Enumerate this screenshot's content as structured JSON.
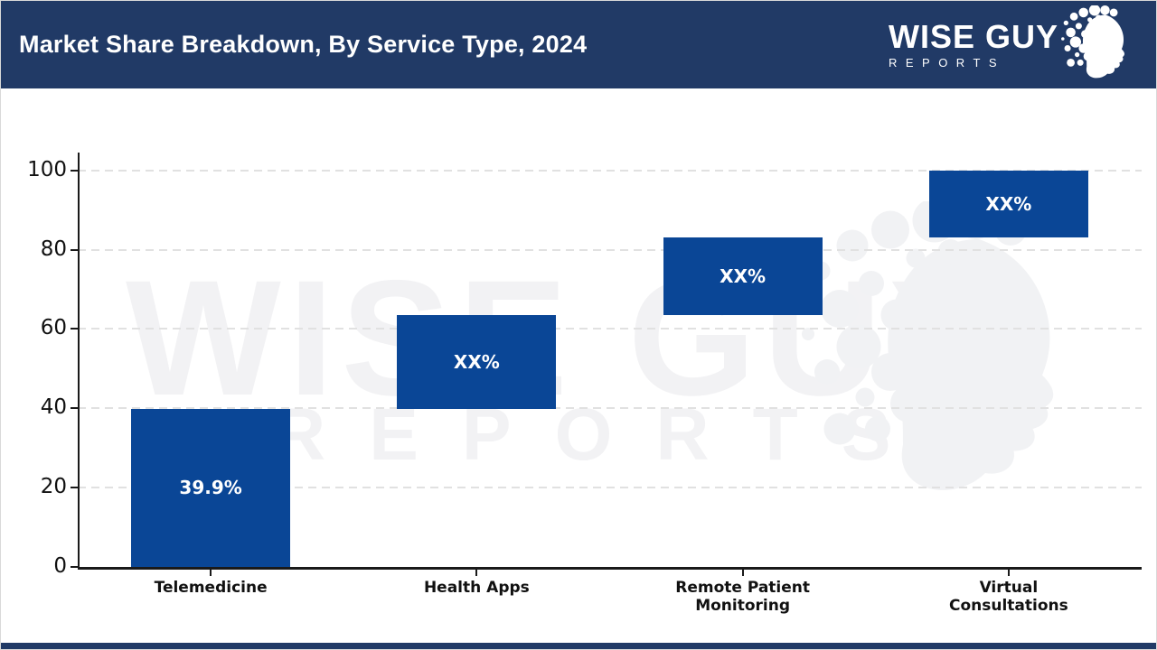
{
  "header": {
    "title": "Market Share Breakdown, By Service Type, 2024",
    "logo": {
      "line1": "WISE GUY",
      "line2": "REPORTS"
    }
  },
  "watermark": {
    "line1": "WISE GUY",
    "line2": "REPORTS"
  },
  "colors": {
    "header_bg": "#213a66",
    "bar": "#0a4696",
    "bar_label": "#ffffff",
    "grid": "#e1e1e1",
    "axis": "#1a1a1a",
    "watermark": "#f2f2f4"
  },
  "chart_data": {
    "type": "bar",
    "subtype": "waterfall",
    "title": "Market Share Breakdown, By Service Type, 2024",
    "categories": [
      "Telemedicine",
      "Health Apps",
      "Remote Patient Monitoring",
      "Virtual Consultations"
    ],
    "segments": [
      {
        "category": "Telemedicine",
        "start": 0,
        "end": 39.9,
        "label": "39.9%"
      },
      {
        "category": "Health Apps",
        "start": 39.9,
        "end": 63.4,
        "label": "XX%"
      },
      {
        "category": "Remote Patient Monitoring",
        "start": 63.4,
        "end": 83.1,
        "label": "XX%"
      },
      {
        "category": "Virtual Consultations",
        "start": 83.1,
        "end": 100,
        "label": "XX%"
      }
    ],
    "yticks": [
      0,
      20,
      40,
      60,
      80,
      100
    ],
    "ylim": [
      0,
      105
    ],
    "xlabel": "",
    "ylabel": "",
    "grid": "horizontal-dashed",
    "legend": "none"
  }
}
